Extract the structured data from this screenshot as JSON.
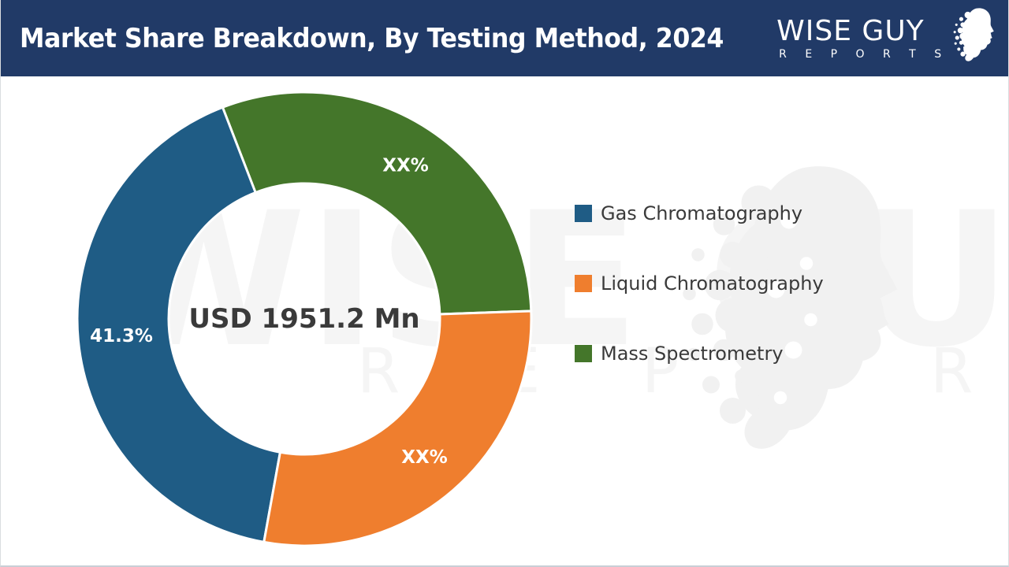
{
  "header": {
    "title": "Market Share Breakdown, By Testing Method, 2024",
    "bg_color": "#213A67",
    "logo": {
      "name": "WISE GUY",
      "tagline": "R E P O R T S"
    }
  },
  "watermark": {
    "big_text": "WISE GUY",
    "small_text": "R E P O R T S"
  },
  "chart_data": {
    "type": "pie",
    "subtype": "donut",
    "title": "Market Share Breakdown, By Testing Method, 2024",
    "center_label": "USD 1951.2 Mn",
    "legend_position": "right",
    "start_angle_deg": 2,
    "direction": "counterclockwise",
    "draw_order": [
      "Mass Spectrometry",
      "Gas Chromatography",
      "Liquid Chromatography"
    ],
    "slice_separator_color": "#FFFFFF",
    "segments": [
      {
        "name": "Gas Chromatography",
        "value_pct": 41.3,
        "label": "41.3%",
        "color": "#1F5C85"
      },
      {
        "name": "Liquid Chromatography",
        "value_pct": 28.4,
        "label": "XX%",
        "color": "#EF7E2E"
      },
      {
        "name": "Mass Spectrometry",
        "value_pct": 30.3,
        "label": "XX%",
        "color": "#44762A"
      }
    ]
  },
  "colors": {
    "header_bg": "#213A67",
    "text_dark": "#3A3A3A",
    "watermark": "#F5F5F5"
  }
}
